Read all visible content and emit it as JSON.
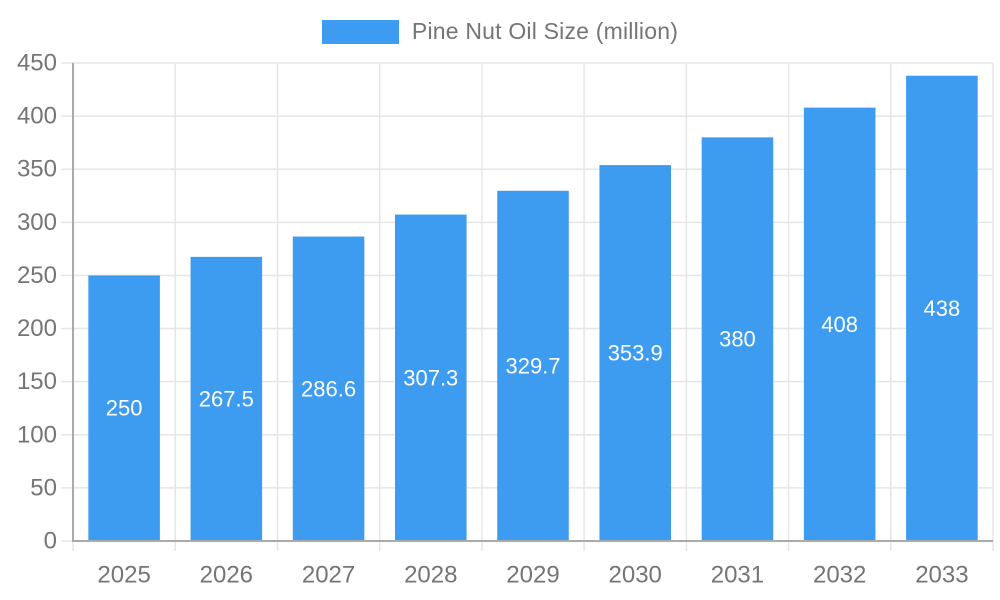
{
  "legend": {
    "label": "Pine Nut Oil Size (million)"
  },
  "colors": {
    "bar": "#3d9cf0",
    "axis": "#aaaaaa",
    "grid": "#e6e6e6",
    "text": "#757575",
    "bar_label": "#ffffff"
  },
  "chart_data": {
    "type": "bar",
    "title": "Pine Nut Oil Size (million)",
    "series_name": "Pine Nut Oil Size (million)",
    "categories": [
      "2025",
      "2026",
      "2027",
      "2028",
      "2029",
      "2030",
      "2031",
      "2032",
      "2033"
    ],
    "values": [
      250,
      267.5,
      286.6,
      307.3,
      329.7,
      353.9,
      380,
      408,
      438
    ],
    "bar_labels": [
      "250",
      "267.5",
      "286.6",
      "307.3",
      "329.7",
      "353.9",
      "380",
      "408",
      "438"
    ],
    "xlabel": "",
    "ylabel": "",
    "ylim": [
      0,
      450
    ],
    "yticks": [
      0,
      50,
      100,
      150,
      200,
      250,
      300,
      350,
      400,
      450
    ],
    "grid": true,
    "legend_position": "top"
  }
}
